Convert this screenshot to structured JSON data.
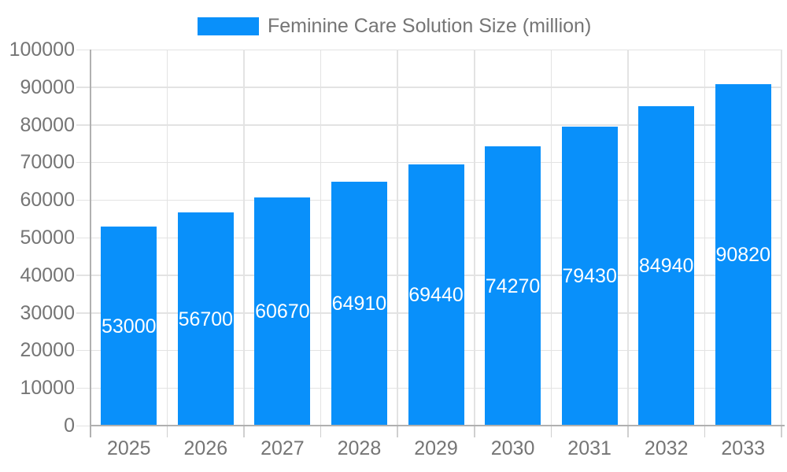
{
  "colors": {
    "bar": "#0990fa",
    "axis_text": "#757575",
    "grid_line": "#e3e3e3",
    "axis_line": "#b0b0b0",
    "tick": "#cfcfcf",
    "value_text": "#ffffff",
    "background": "#ffffff"
  },
  "legend": {
    "label": "Feminine Care Solution Size (million)"
  },
  "chart_data": {
    "type": "bar",
    "title": "Feminine Care Solution Size (million)",
    "series_name": "Feminine Care Solution Size (million)",
    "categories": [
      "2025",
      "2026",
      "2027",
      "2028",
      "2029",
      "2030",
      "2031",
      "2032",
      "2033"
    ],
    "values": [
      53000,
      56700,
      60670,
      64910,
      69440,
      74270,
      79430,
      84940,
      90820
    ],
    "value_labels": [
      "53000",
      "56700",
      "60670",
      "64910",
      "69440",
      "74270",
      "79430",
      "84940",
      "90820"
    ],
    "value_label_position": "inside-center",
    "xlabel": "",
    "ylabel": "",
    "ylim": [
      0,
      100000
    ],
    "ytick_step": 10000,
    "ytick_labels": [
      "0",
      "10000",
      "20000",
      "30000",
      "40000",
      "50000",
      "60000",
      "70000",
      "80000",
      "90000",
      "100000"
    ],
    "grid": true,
    "legend_position": "top"
  }
}
